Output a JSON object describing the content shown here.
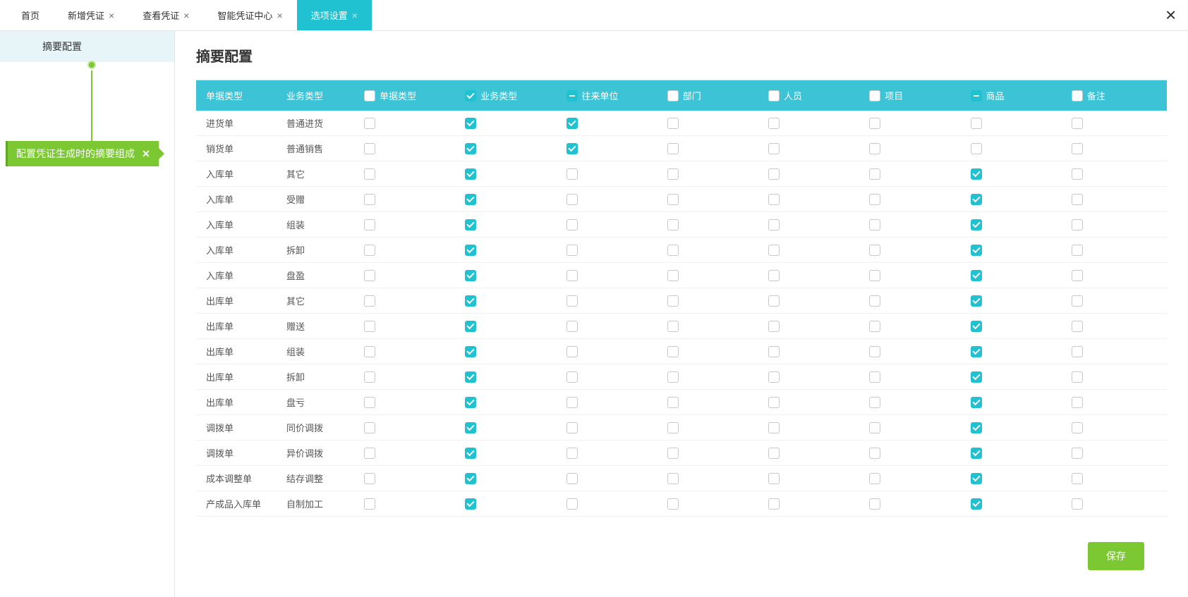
{
  "tabs": [
    {
      "label": "首页",
      "closable": false,
      "active": false
    },
    {
      "label": "新增凭证",
      "closable": true,
      "active": false
    },
    {
      "label": "查看凭证",
      "closable": true,
      "active": false
    },
    {
      "label": "智能凭证中心",
      "closable": true,
      "active": false
    },
    {
      "label": "选项设置",
      "closable": true,
      "active": true
    }
  ],
  "sidebar": {
    "tab_label": "摘要配置",
    "tooltip": "配置凭证生成时的摘要组成"
  },
  "page": {
    "title": "摘要配置",
    "save_label": "保存"
  },
  "table": {
    "text_columns": [
      {
        "key": "doc_type",
        "label": "单据类型"
      },
      {
        "key": "biz_type",
        "label": "业务类型"
      }
    ],
    "check_columns": [
      {
        "key": "c_doc",
        "label": "单据类型",
        "header_state": "unchecked"
      },
      {
        "key": "c_biz",
        "label": "业务类型",
        "header_state": "checked"
      },
      {
        "key": "c_unit",
        "label": "往来单位",
        "header_state": "indeterminate"
      },
      {
        "key": "c_dept",
        "label": "部门",
        "header_state": "unchecked"
      },
      {
        "key": "c_person",
        "label": "人员",
        "header_state": "unchecked"
      },
      {
        "key": "c_proj",
        "label": "项目",
        "header_state": "unchecked"
      },
      {
        "key": "c_goods",
        "label": "商品",
        "header_state": "indeterminate"
      },
      {
        "key": "c_remark",
        "label": "备注",
        "header_state": "unchecked"
      }
    ],
    "rows": [
      {
        "doc_type": "进货单",
        "biz_type": "普通进货",
        "c_doc": false,
        "c_biz": true,
        "c_unit": true,
        "c_dept": false,
        "c_person": false,
        "c_proj": false,
        "c_goods": false,
        "c_remark": false
      },
      {
        "doc_type": "销货单",
        "biz_type": "普通销售",
        "c_doc": false,
        "c_biz": true,
        "c_unit": true,
        "c_dept": false,
        "c_person": false,
        "c_proj": false,
        "c_goods": false,
        "c_remark": false
      },
      {
        "doc_type": "入库单",
        "biz_type": "其它",
        "c_doc": false,
        "c_biz": true,
        "c_unit": false,
        "c_dept": false,
        "c_person": false,
        "c_proj": false,
        "c_goods": true,
        "c_remark": false
      },
      {
        "doc_type": "入库单",
        "biz_type": "受赠",
        "c_doc": false,
        "c_biz": true,
        "c_unit": false,
        "c_dept": false,
        "c_person": false,
        "c_proj": false,
        "c_goods": true,
        "c_remark": false
      },
      {
        "doc_type": "入库单",
        "biz_type": "组装",
        "c_doc": false,
        "c_biz": true,
        "c_unit": false,
        "c_dept": false,
        "c_person": false,
        "c_proj": false,
        "c_goods": true,
        "c_remark": false
      },
      {
        "doc_type": "入库单",
        "biz_type": "拆卸",
        "c_doc": false,
        "c_biz": true,
        "c_unit": false,
        "c_dept": false,
        "c_person": false,
        "c_proj": false,
        "c_goods": true,
        "c_remark": false
      },
      {
        "doc_type": "入库单",
        "biz_type": "盘盈",
        "c_doc": false,
        "c_biz": true,
        "c_unit": false,
        "c_dept": false,
        "c_person": false,
        "c_proj": false,
        "c_goods": true,
        "c_remark": false
      },
      {
        "doc_type": "出库单",
        "biz_type": "其它",
        "c_doc": false,
        "c_biz": true,
        "c_unit": false,
        "c_dept": false,
        "c_person": false,
        "c_proj": false,
        "c_goods": true,
        "c_remark": false
      },
      {
        "doc_type": "出库单",
        "biz_type": "赠送",
        "c_doc": false,
        "c_biz": true,
        "c_unit": false,
        "c_dept": false,
        "c_person": false,
        "c_proj": false,
        "c_goods": true,
        "c_remark": false
      },
      {
        "doc_type": "出库单",
        "biz_type": "组装",
        "c_doc": false,
        "c_biz": true,
        "c_unit": false,
        "c_dept": false,
        "c_person": false,
        "c_proj": false,
        "c_goods": true,
        "c_remark": false
      },
      {
        "doc_type": "出库单",
        "biz_type": "拆卸",
        "c_doc": false,
        "c_biz": true,
        "c_unit": false,
        "c_dept": false,
        "c_person": false,
        "c_proj": false,
        "c_goods": true,
        "c_remark": false
      },
      {
        "doc_type": "出库单",
        "biz_type": "盘亏",
        "c_doc": false,
        "c_biz": true,
        "c_unit": false,
        "c_dept": false,
        "c_person": false,
        "c_proj": false,
        "c_goods": true,
        "c_remark": false
      },
      {
        "doc_type": "调拨单",
        "biz_type": "同价调拨",
        "c_doc": false,
        "c_biz": true,
        "c_unit": false,
        "c_dept": false,
        "c_person": false,
        "c_proj": false,
        "c_goods": true,
        "c_remark": false
      },
      {
        "doc_type": "调拨单",
        "biz_type": "异价调拨",
        "c_doc": false,
        "c_biz": true,
        "c_unit": false,
        "c_dept": false,
        "c_person": false,
        "c_proj": false,
        "c_goods": true,
        "c_remark": false
      },
      {
        "doc_type": "成本调整单",
        "biz_type": "结存调整",
        "c_doc": false,
        "c_biz": true,
        "c_unit": false,
        "c_dept": false,
        "c_person": false,
        "c_proj": false,
        "c_goods": true,
        "c_remark": false
      },
      {
        "doc_type": "产成品入库单",
        "biz_type": "自制加工",
        "c_doc": false,
        "c_biz": true,
        "c_unit": false,
        "c_dept": false,
        "c_person": false,
        "c_proj": false,
        "c_goods": true,
        "c_remark": false
      }
    ]
  },
  "colors": {
    "accent_teal": "#20c1d0",
    "header_teal": "#3cc4d6",
    "accent_green": "#7bc832",
    "sidebar_tab_bg": "#e7f5f9",
    "border": "#e5e5e5"
  }
}
